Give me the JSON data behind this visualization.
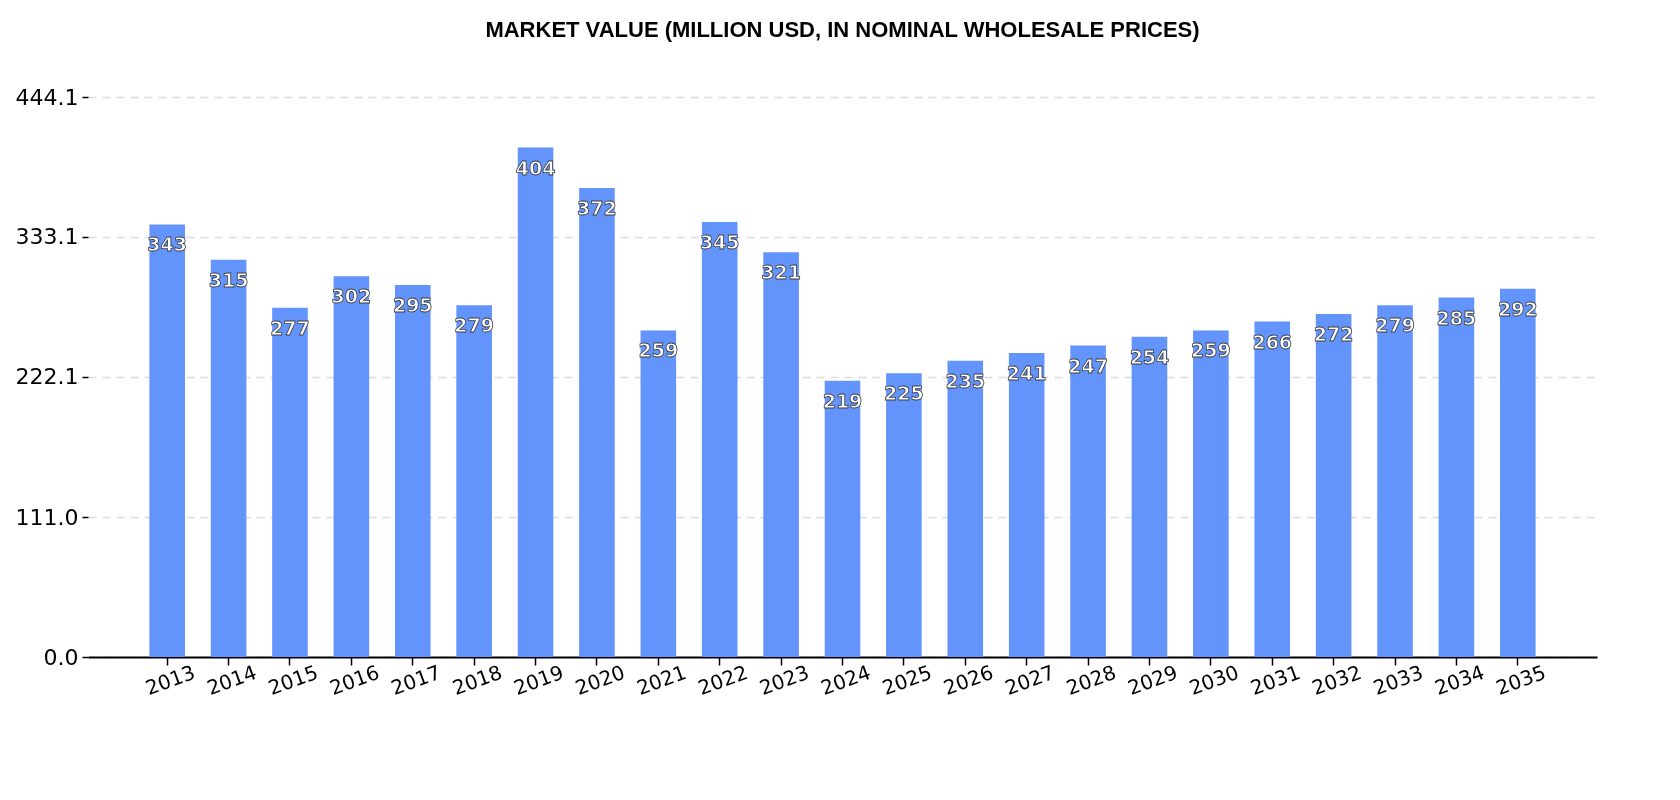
{
  "chart_data": {
    "type": "bar",
    "title": "MARKET VALUE (MILLION USD, IN NOMINAL WHOLESALE PRICES)",
    "categories": [
      "2013",
      "2014",
      "2015",
      "2016",
      "2017",
      "2018",
      "2019",
      "2020",
      "2021",
      "2022",
      "2023",
      "2024",
      "2025",
      "2026",
      "2027",
      "2028",
      "2029",
      "2030",
      "2031",
      "2032",
      "2033",
      "2034",
      "2035"
    ],
    "values": [
      343,
      315,
      277,
      302,
      295,
      279,
      404,
      372,
      259,
      345,
      321,
      219,
      225,
      235,
      241,
      247,
      254,
      259,
      266,
      272,
      279,
      285,
      292
    ],
    "color": "#6394fc",
    "ylim": [
      0,
      444.1
    ],
    "yticks": [
      {
        "value": 0,
        "label": "0.0"
      },
      {
        "value": 111,
        "label": "111.0"
      },
      222.1,
      333.1,
      444.1
    ],
    "grid": "y",
    "data_labels": true
  }
}
